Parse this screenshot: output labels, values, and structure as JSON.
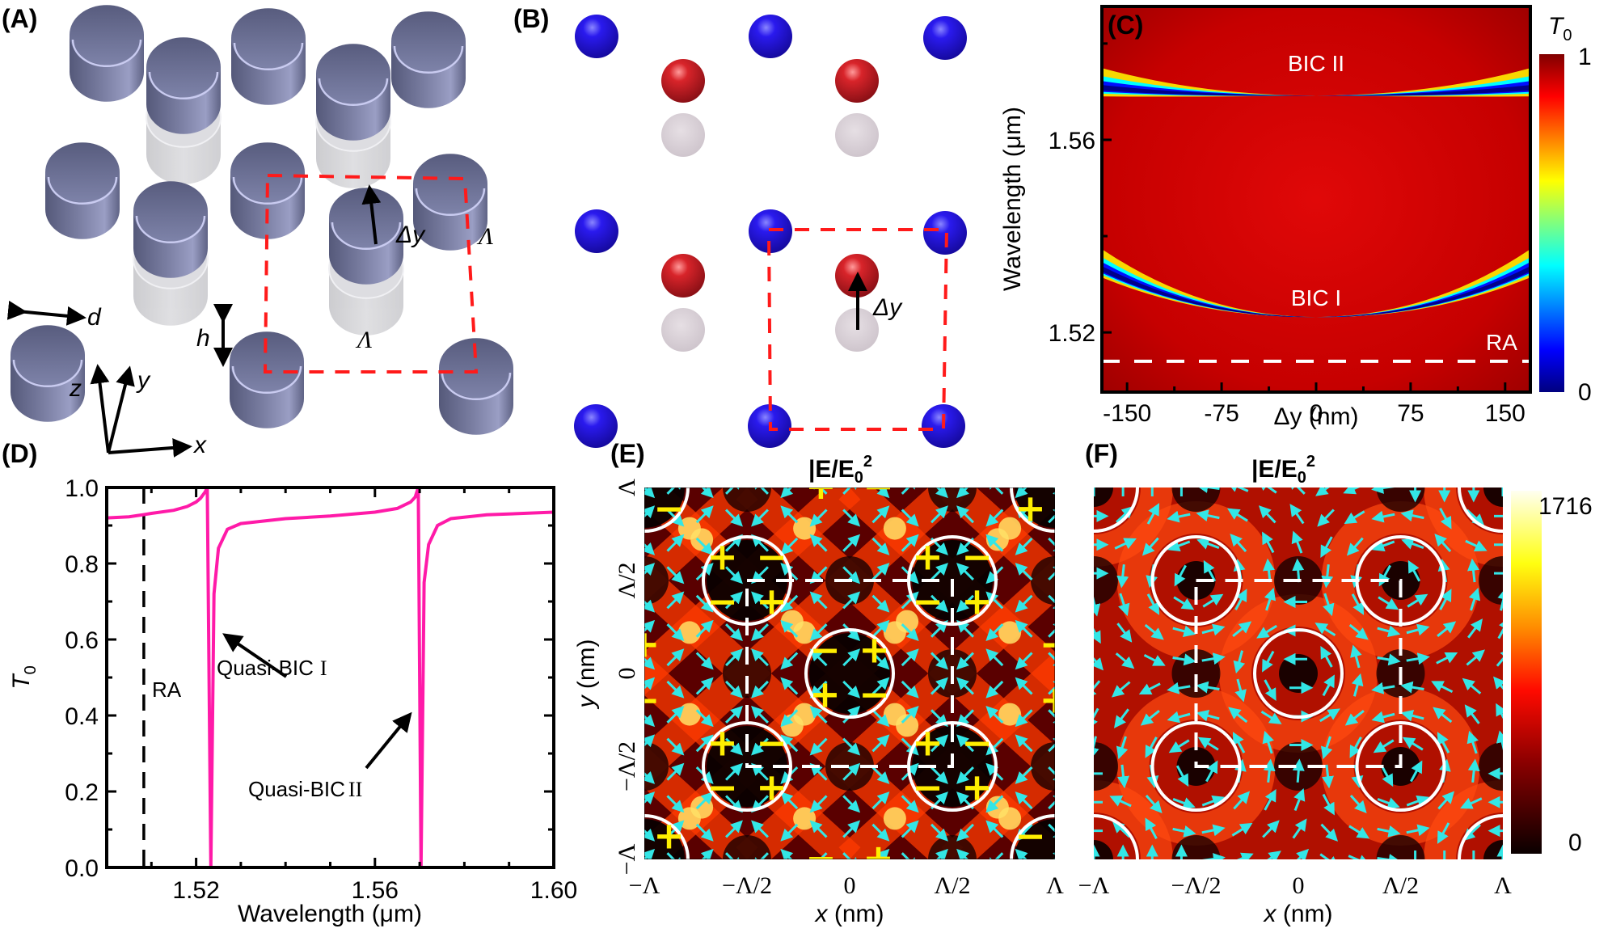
{
  "figure": {
    "panels": {
      "A": {
        "label": "(A)",
        "annotations": {
          "delta_y": "Δy",
          "period_x": "Λ",
          "period_y": "Λ",
          "diameter": "d",
          "height": "h"
        },
        "axes": {
          "x": "x",
          "y": "y",
          "z": "z"
        },
        "colors": {
          "cylinder": "#6b6f92",
          "cylinder_rim": "#c9cbf0",
          "ghost": "#d4d4d8",
          "unit_cell": "#ff1a1a"
        }
      },
      "B": {
        "label": "(B)",
        "annotations": {
          "delta_y": "Δy"
        },
        "colors": {
          "fixed_particle": "#1f10d8",
          "shifted_particle": "#cc1d24",
          "ghost": "#d9cfd6",
          "unit_cell": "#ff1a1a"
        }
      },
      "C": {
        "label": "(C)"
      },
      "D": {
        "label": "(D)"
      },
      "E": {
        "label": "(E)",
        "title": "|E/E0|²",
        "title_main": "|E/E",
        "title_sub": "0",
        "title_sup": "2"
      },
      "F": {
        "label": "(F)",
        "title_main": "|E/E",
        "title_sub": "0",
        "title_sup": "2"
      }
    }
  },
  "chart_data": [
    {
      "id": "C",
      "type": "heatmap",
      "title": "",
      "xlabel": "Δy (nm)",
      "ylabel": "Wavelength (μm)",
      "xlim": [
        -170,
        170
      ],
      "ylim": [
        1.5076,
        1.5877
      ],
      "x_ticks": [
        "-150",
        "-75",
        "0",
        "75",
        "150"
      ],
      "x_tick_values": [
        -150,
        -75,
        0,
        75,
        150
      ],
      "y_ticks": [
        "1.52",
        "1.56"
      ],
      "y_tick_values": [
        1.52,
        1.56
      ],
      "colorbar": {
        "label": "T",
        "label_sub": "0",
        "min": 0,
        "max": 1,
        "min_label": "0",
        "max_label": "1",
        "colormap": "jet"
      },
      "bands": [
        {
          "name": "BIC II",
          "label": "BIC II",
          "center_wavelength_um": 1.5692,
          "curvature": "opens upward",
          "vanishes_at_dy": 0
        },
        {
          "name": "BIC I",
          "label": "BIC I",
          "center_wavelength_um": 1.5232,
          "curvature": "opens upward",
          "vanishes_at_dy": 0
        }
      ],
      "reference_lines": [
        {
          "name": "RA",
          "label": "RA",
          "wavelength_um": 1.514,
          "style": "dashed",
          "color": "#ffffff"
        }
      ]
    },
    {
      "id": "D",
      "type": "line",
      "title": "",
      "xlabel": "Wavelength (μm)",
      "ylabel": "T",
      "ylabel_sub": "0",
      "xlim": [
        1.5,
        1.6
      ],
      "ylim": [
        0.0,
        1.0
      ],
      "x_ticks": [
        "1.52",
        "1.56",
        "1.60"
      ],
      "x_tick_values": [
        1.52,
        1.56,
        1.6
      ],
      "y_ticks": [
        "0.0",
        "0.2",
        "0.4",
        "0.6",
        "0.8",
        "1.0"
      ],
      "y_tick_values": [
        0.0,
        0.2,
        0.4,
        0.6,
        0.8,
        1.0
      ],
      "series": [
        {
          "name": "T0",
          "color": "#ff1aa8",
          "baseline": 0.93,
          "resonances": [
            {
              "name": "Quasi-BIC I",
              "peak_wavelength_um": 1.5225,
              "dip_wavelength_um": 1.5233,
              "peak_value": 1.0,
              "dip_value": 0.0
            },
            {
              "name": "Quasi-BIC II",
              "peak_wavelength_um": 1.5697,
              "dip_wavelength_um": 1.5703,
              "peak_value": 1.0,
              "dip_value": 0.0
            }
          ],
          "x": [
            1.5,
            1.505,
            1.508,
            1.51,
            1.515,
            1.518,
            1.52,
            1.521,
            1.522,
            1.5225,
            1.5233,
            1.524,
            1.525,
            1.527,
            1.53,
            1.54,
            1.55,
            1.56,
            1.565,
            1.568,
            1.569,
            1.5697,
            1.5703,
            1.571,
            1.572,
            1.574,
            1.577,
            1.585,
            1.6
          ],
          "y": [
            0.92,
            0.923,
            0.928,
            0.932,
            0.94,
            0.95,
            0.962,
            0.972,
            0.988,
            1.0,
            0.0,
            0.72,
            0.84,
            0.89,
            0.905,
            0.918,
            0.925,
            0.935,
            0.945,
            0.962,
            0.975,
            1.0,
            0.0,
            0.75,
            0.85,
            0.9,
            0.918,
            0.928,
            0.935
          ]
        }
      ],
      "reference_lines": [
        {
          "name": "RA",
          "label": "RA",
          "wavelength_um": 1.5083,
          "style": "dashed",
          "color": "#000000"
        }
      ],
      "annotations": [
        {
          "text": "Quasi-BIC",
          "numeral": "I",
          "points_to_wavelength_um": 1.5235,
          "points_to_value": 0.67
        },
        {
          "text": "Quasi-BIC",
          "numeral": "II",
          "points_to_wavelength_um": 1.5695,
          "points_to_value": 0.38
        }
      ]
    },
    {
      "id": "E",
      "type": "heatmap",
      "title": "|E/E0|²",
      "xlabel": "x (nm)",
      "ylabel": "y (nm)",
      "x_ticks": [
        "−Λ",
        "−Λ/2",
        "0",
        "Λ/2",
        "Λ"
      ],
      "y_ticks": [
        "−Λ",
        "−Λ/2",
        "0",
        "Λ/2",
        "Λ"
      ],
      "colormap": "hot",
      "field": "in-plane electric field arrows (cyan)",
      "charge_signs": [
        {
          "pos": "(−Λ, Λ)",
          "signs": [
            "−"
          ]
        },
        {
          "pos": "(0, Λ)",
          "signs": [
            "+",
            "−"
          ]
        },
        {
          "pos": "(Λ, Λ)",
          "signs": [
            "+"
          ]
        },
        {
          "pos": "(−Λ/2, Λ/2)",
          "signs": [
            "+",
            "−",
            "−",
            "+"
          ]
        },
        {
          "pos": "(Λ/2, Λ/2)",
          "signs": [
            "+",
            "−",
            "−",
            "+"
          ]
        },
        {
          "pos": "(−Λ, 0)",
          "signs": [
            "+",
            "−"
          ]
        },
        {
          "pos": "(0, 0)",
          "signs": [
            "−",
            "+",
            "+",
            "−"
          ]
        },
        {
          "pos": "(Λ, 0)",
          "signs": [
            "−",
            "+"
          ]
        },
        {
          "pos": "(−Λ/2, −Λ/2)",
          "signs": [
            "+",
            "−",
            "−",
            "+"
          ]
        },
        {
          "pos": "(Λ/2, −Λ/2)",
          "signs": [
            "+",
            "−",
            "−",
            "+"
          ]
        },
        {
          "pos": "(−Λ, −Λ)",
          "signs": [
            "+"
          ]
        },
        {
          "pos": "(0, −Λ)",
          "signs": [
            "−",
            "+"
          ]
        },
        {
          "pos": "(Λ, −Λ)",
          "signs": [
            "−"
          ]
        }
      ]
    },
    {
      "id": "F",
      "type": "heatmap",
      "title": "|E/E0|²",
      "xlabel": "x (nm)",
      "ylabel": "",
      "x_ticks": [
        "−Λ",
        "−Λ/2",
        "0",
        "Λ/2",
        "Λ"
      ],
      "colormap": "hot",
      "colorbar": {
        "min": 0,
        "max": 1716,
        "min_label": "0",
        "max_label": "1716"
      },
      "field": "in-plane electric field arrows (cyan), vortex pattern around each particle"
    }
  ]
}
